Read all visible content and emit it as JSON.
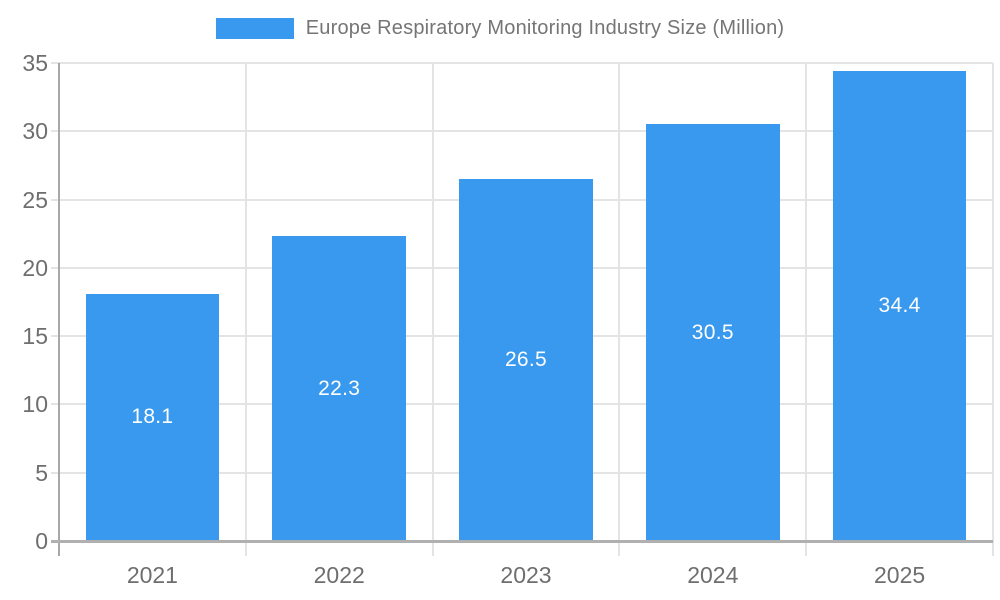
{
  "chart_data": {
    "type": "bar",
    "title": "Europe Respiratory Monitoring Industry Size (Million)",
    "categories": [
      "2021",
      "2022",
      "2023",
      "2024",
      "2025"
    ],
    "values": [
      18.1,
      22.3,
      26.5,
      30.5,
      34.4
    ],
    "value_labels": [
      "18.1",
      "22.3",
      "26.5",
      "30.5",
      "34.4"
    ],
    "xlabel": "",
    "ylabel": "",
    "ylim": [
      0,
      35
    ],
    "yticks": [
      0,
      5,
      10,
      15,
      20,
      25,
      30,
      35
    ],
    "grid": "on",
    "legend_position": "top",
    "colors": {
      "bar": "#3899ee",
      "bar_label": "#ffffff",
      "legend_text": "#757575",
      "axis_text": "#6e6e6e",
      "grid_line": "#e4e4e4",
      "axis_line": "#a8a8a8",
      "baseline": "#b0b0b0",
      "background": "#ffffff"
    }
  }
}
